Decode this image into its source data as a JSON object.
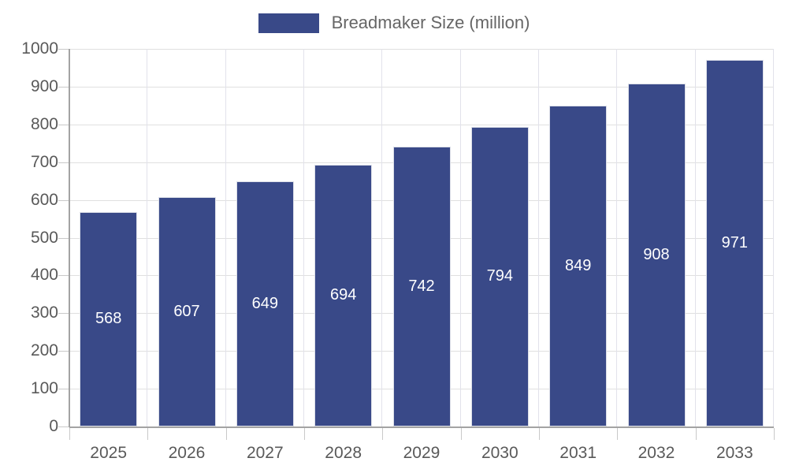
{
  "legend": {
    "label": "Breadmaker Size (million)"
  },
  "chart_data": {
    "type": "bar",
    "title": "",
    "xlabel": "",
    "ylabel": "",
    "categories": [
      "2025",
      "2026",
      "2027",
      "2028",
      "2029",
      "2030",
      "2031",
      "2032",
      "2033"
    ],
    "series": [
      {
        "name": "Breadmaker Size (million)",
        "values": [
          568,
          607,
          649,
          694,
          742,
          794,
          849,
          908,
          971
        ]
      }
    ],
    "bar_value_labels": [
      "568",
      "607",
      "649",
      "694",
      "742",
      "794",
      "849",
      "908",
      "971"
    ],
    "ylim": [
      0,
      1000
    ],
    "ytick_step": 100,
    "ytick_labels": [
      "0",
      "100",
      "200",
      "300",
      "400",
      "500",
      "600",
      "700",
      "800",
      "900",
      "1000"
    ],
    "grid": true,
    "legend_position": "top"
  },
  "colors": {
    "bar": "#394988",
    "bar_border": "#DCDFE8",
    "bar_label": "#FFFFFF",
    "grid_horizontal": "#E0E0E0",
    "grid_vertical": "#E2E2EB",
    "axis_spine": "#A3A3A3",
    "tick_mark": "#C9C9C9",
    "tick_label": "#595959",
    "legend_text": "#666666",
    "background": "#FFFFFF"
  }
}
